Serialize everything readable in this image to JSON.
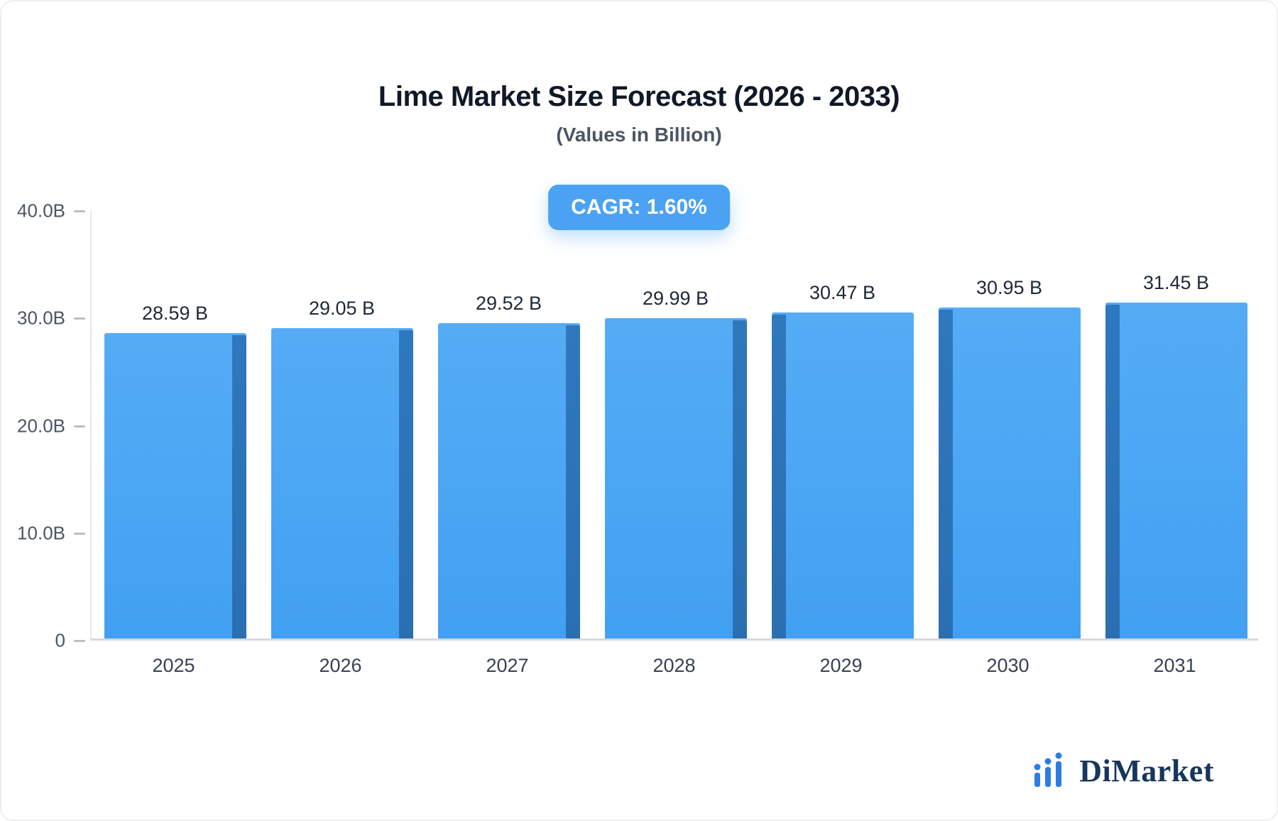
{
  "title": "Lime Market Size Forecast (2026 - 2033)",
  "subtitle": "(Values in Billion)",
  "badge": {
    "label": "CAGR: 1.60%"
  },
  "chart_data": {
    "type": "bar",
    "title": "Lime Market Size Forecast (2026 - 2033)",
    "subtitle": "(Values in Billion)",
    "categories": [
      "2025",
      "2026",
      "2027",
      "2028",
      "2029",
      "2030",
      "2031"
    ],
    "values": [
      28.59,
      29.05,
      29.52,
      29.99,
      30.47,
      30.95,
      31.45
    ],
    "value_labels": [
      "28.59 B",
      "29.05 B",
      "29.52 B",
      "29.99 B",
      "30.47 B",
      "30.95 B",
      "31.45 B"
    ],
    "xlabel": "",
    "ylabel": "",
    "ylim": [
      0,
      40
    ],
    "grid": false,
    "legend": "none",
    "yticks": [
      {
        "v": 0,
        "label": "0"
      },
      {
        "v": 10,
        "label": "10.0B"
      },
      {
        "v": 20,
        "label": "20.0B"
      },
      {
        "v": 30,
        "label": "30.0B"
      },
      {
        "v": 40,
        "label": "40.0B"
      }
    ]
  },
  "colors": {
    "badge_bg": "#4BA2F2",
    "bar_main": "#42A0F2",
    "bar_main_light": "#55ACF5",
    "bar_side": "#2E78BE",
    "bar_side_dark": "#2B6FB2"
  },
  "logo": {
    "text": "DiMarket"
  }
}
